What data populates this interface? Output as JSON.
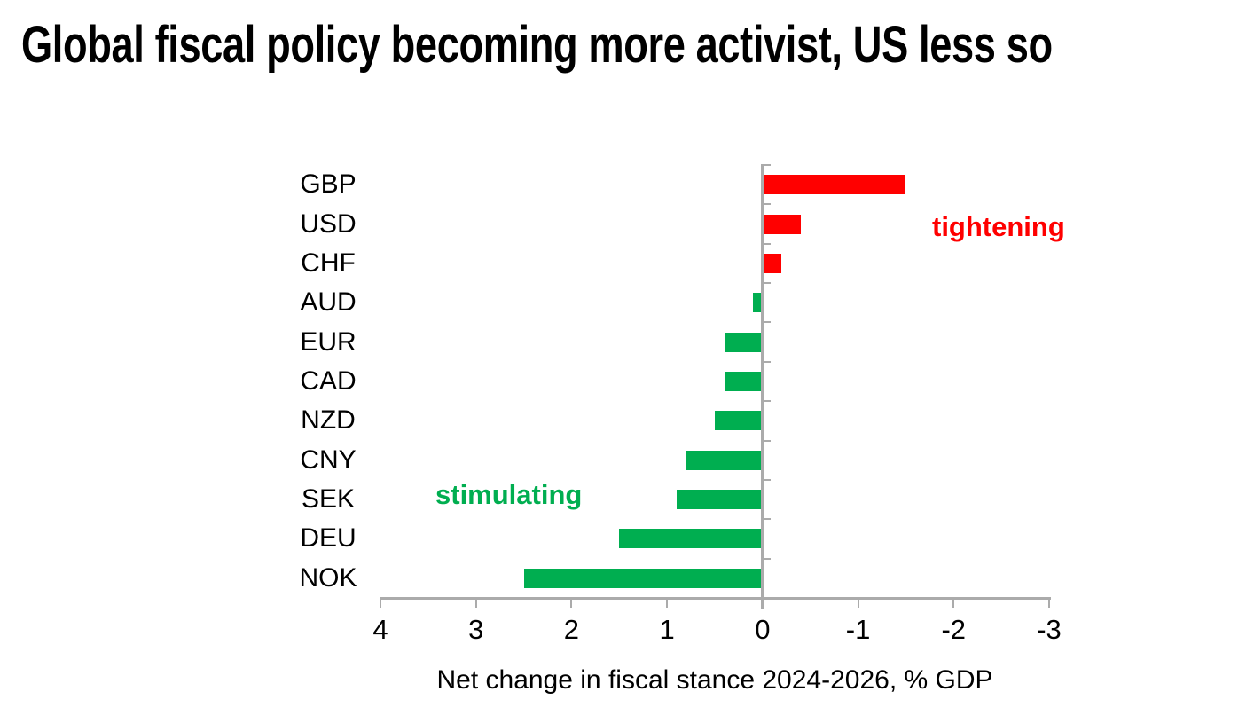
{
  "title": "Global fiscal policy becoming more activist, US less so",
  "chart_data": {
    "type": "bar",
    "orientation": "horizontal",
    "title": "Global fiscal policy becoming more activist, US less so",
    "xlabel": "Net change in fiscal stance 2024-2026, % GDP",
    "categories": [
      "GBP",
      "USD",
      "CHF",
      "AUD",
      "EUR",
      "CAD",
      "NZD",
      "CNY",
      "SEK",
      "DEU",
      "NOK"
    ],
    "values": [
      -1.5,
      -0.4,
      -0.2,
      0.1,
      0.4,
      0.4,
      0.5,
      0.8,
      0.9,
      1.5,
      2.5
    ],
    "x_ticks": [
      4,
      3,
      2,
      1,
      0,
      -1,
      -2,
      -3
    ],
    "x_axis_left_value": 4,
    "x_axis_right_value": -3,
    "axis_reversed": true,
    "grid": false,
    "legend": false,
    "positive_color": "#00AE50",
    "negative_color": "#FF0000",
    "axis_color": "#ababab",
    "text_color": "#000000"
  },
  "annotations": {
    "tightening": {
      "label": "tightening",
      "color": "#FF0000"
    },
    "stimulating": {
      "label": "stimulating",
      "color": "#00AE50"
    }
  }
}
